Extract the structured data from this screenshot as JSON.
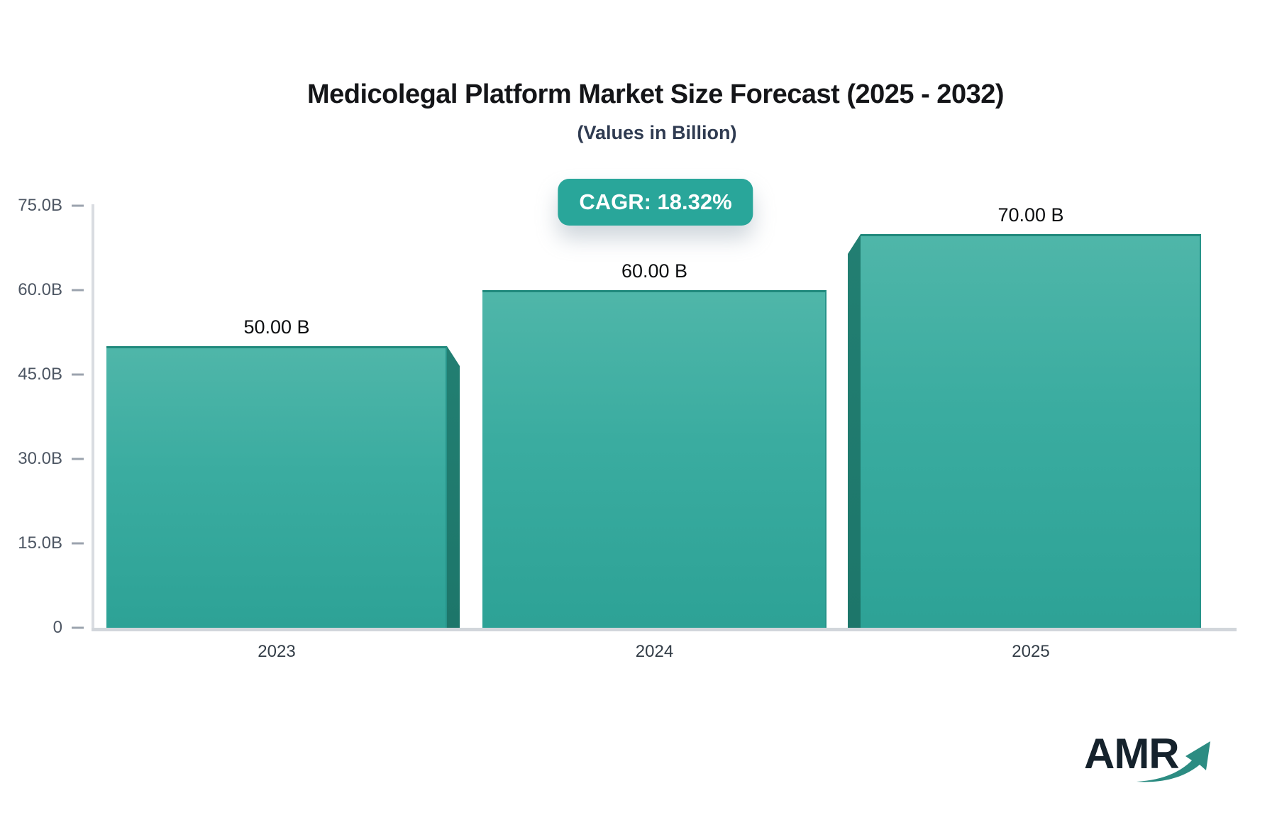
{
  "header": {
    "title": "Medicolegal Platform Market Size Forecast (2025 - 2032)",
    "subtitle": "(Values in Billion)"
  },
  "badge": {
    "label": "CAGR: 18.32%"
  },
  "chart_data": {
    "type": "bar",
    "title": "Medicolegal Platform Market Size Forecast (2025 - 2032)",
    "subtitle": "(Values in Billion)",
    "unit": "Billion",
    "categories": [
      "2023",
      "2024",
      "2025"
    ],
    "values": [
      50,
      60,
      70
    ],
    "bars": [
      {
        "category": "2023",
        "value": 50,
        "label": "50.00 B"
      },
      {
        "category": "2024",
        "value": 60,
        "label": "60.00 B"
      },
      {
        "category": "2025",
        "value": 70,
        "label": "70.00 B"
      }
    ],
    "yticks": [
      {
        "value": 0,
        "label": "0"
      },
      {
        "value": 15,
        "label": "15.0B"
      },
      {
        "value": 30,
        "label": "30.0B"
      },
      {
        "value": 45,
        "label": "45.0B"
      },
      {
        "value": 60,
        "label": "60.0B"
      },
      {
        "value": 75,
        "label": "75.0B"
      }
    ],
    "ylim": [
      0,
      75
    ],
    "xlabel": "",
    "ylabel": "",
    "legend_visible": false,
    "grid": false,
    "annotation": "CAGR: 18.32%"
  },
  "logo": {
    "text": "AMR",
    "arrow_icon": "growth-arrow-icon"
  },
  "colors": {
    "bar_top": "#4fb6a9",
    "bar_bottom": "#2da296",
    "bar_side_shadow": "#217e71",
    "bar_top_edge": "#20897c",
    "badge_background": "#29a69a",
    "badge_text": "#ffffff",
    "axis_line": "#d2d6db",
    "tick_text": "#4d5663",
    "title_text": "#141518",
    "subtitle_text": "#2f3b51",
    "logo_text": "#15222c",
    "logo_arrow": "#2c8c82"
  }
}
